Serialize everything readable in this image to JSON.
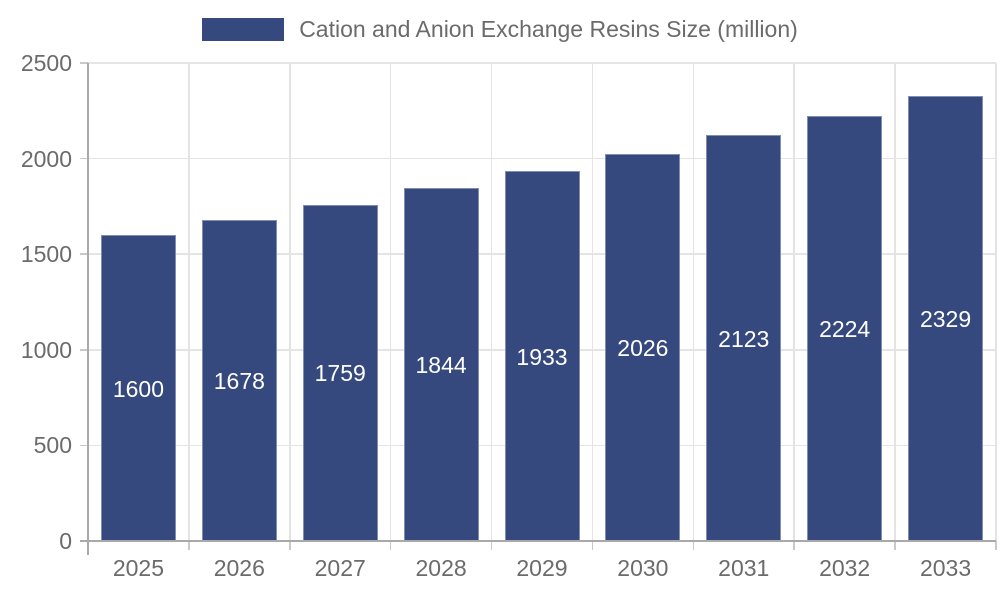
{
  "legend": {
    "label": "Cation and Anion Exchange Resins Size (million)"
  },
  "chart_data": {
    "type": "bar",
    "title": "Cation and Anion Exchange Resins Size (million)",
    "categories": [
      "2025",
      "2026",
      "2027",
      "2028",
      "2029",
      "2030",
      "2031",
      "2032",
      "2033"
    ],
    "values": [
      1600,
      1678,
      1759,
      1844,
      1933,
      2026,
      2123,
      2224,
      2329
    ],
    "xlabel": "",
    "ylabel": "",
    "ylim": [
      0,
      2500
    ],
    "yticks": [
      0,
      500,
      1000,
      1500,
      2000,
      2500
    ],
    "grid": true,
    "legend_position": "top",
    "bar_value_labels": "inside-center"
  },
  "colors": {
    "bar": "#36497E",
    "bar_label": "#FFFFFF",
    "axis_text": "#6B6B6B",
    "legend_text": "#6B6B6B",
    "axis_line": "#A9A9A9",
    "gridline": "#E4E4E4",
    "tick": "#C9C9C9",
    "background": "#FFFFFF"
  }
}
